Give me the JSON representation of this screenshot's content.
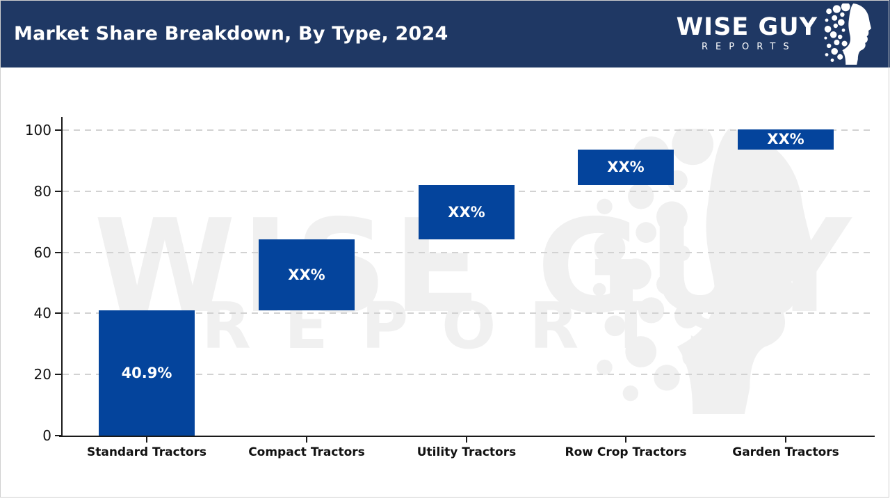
{
  "header": {
    "title": "Market Share Breakdown, By Type, 2024",
    "logo": {
      "line1": "WISE GUY",
      "line2": "REPORTS"
    }
  },
  "watermark": {
    "line1": "WISE GUY",
    "line2": "REPORTS"
  },
  "colors": {
    "header_bg": "#1f3864",
    "bar": "#04449c",
    "bar_label": "#ffffff",
    "grid": "#d2d2d2",
    "axis": "#1a1a1a",
    "watermark": "#f0f0f0"
  },
  "chart_data": {
    "type": "bar",
    "subtype": "waterfall",
    "title": "Market Share Breakdown, By Type, 2024",
    "categories": [
      "Standard Tractors",
      "Compact Tractors",
      "Utility Tractors",
      "Row Crop Tractors",
      "Garden Tractors"
    ],
    "segments": [
      {
        "category": "Standard Tractors",
        "start": 0,
        "end": 40.9,
        "value": 40.9,
        "value_label": "40.9%"
      },
      {
        "category": "Compact Tractors",
        "start": 40.9,
        "end": 64.3,
        "value": 23.4,
        "value_label": "XX%"
      },
      {
        "category": "Utility Tractors",
        "start": 64.3,
        "end": 82.1,
        "value": 17.8,
        "value_label": "XX%"
      },
      {
        "category": "Row Crop Tractors",
        "start": 82.1,
        "end": 93.6,
        "value": 11.5,
        "value_label": "XX%"
      },
      {
        "category": "Garden Tractors",
        "start": 93.6,
        "end": 100.3,
        "value": 6.7,
        "value_label": "XX%"
      }
    ],
    "yticks": [
      0,
      20,
      40,
      60,
      80,
      100
    ],
    "ylim": [
      0,
      104
    ],
    "xlabel": "",
    "ylabel": "",
    "grid": "horizontal-dashed",
    "legend": "none"
  }
}
